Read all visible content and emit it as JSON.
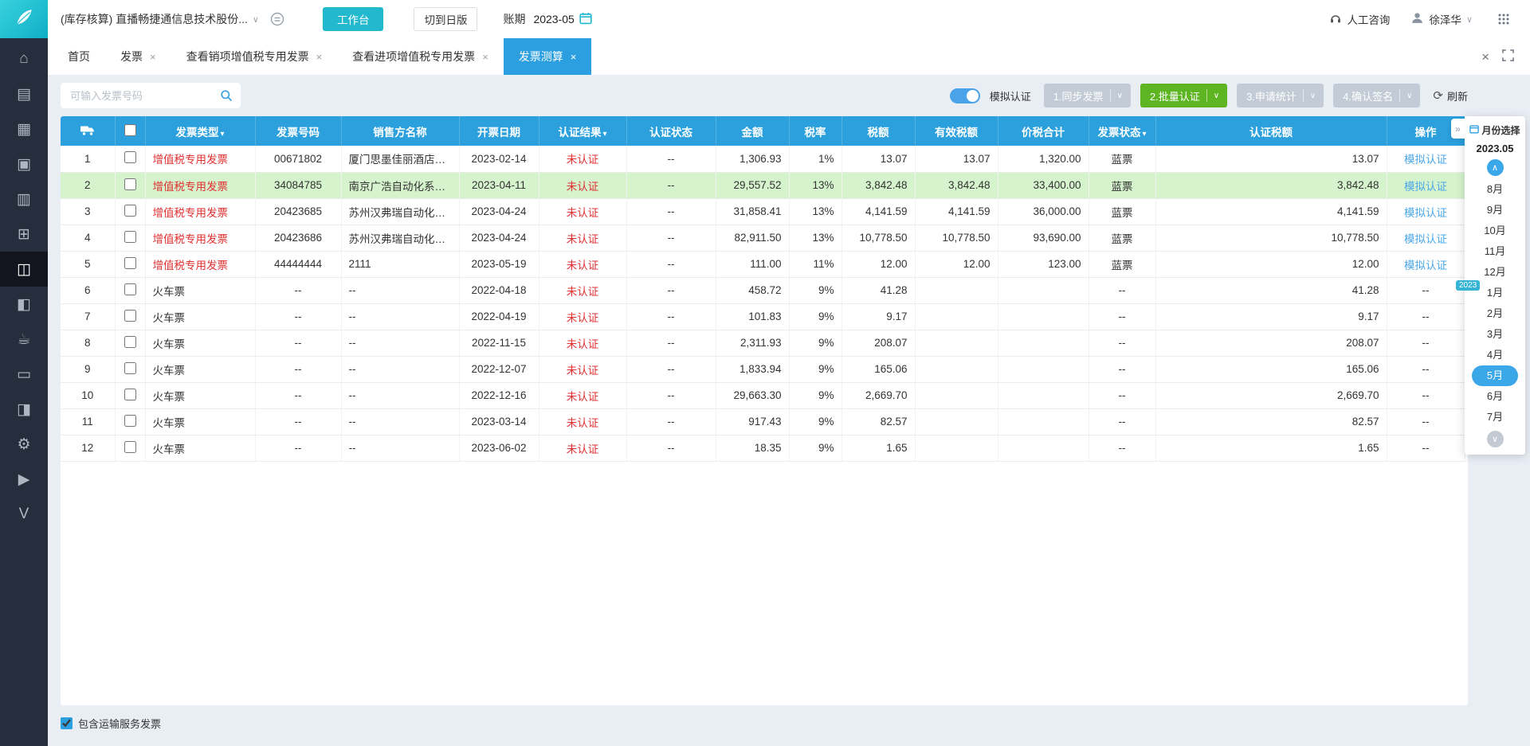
{
  "colors": {
    "accent_blue": "#2b9fe0",
    "teal": "#1fb9cc",
    "green": "#5db522",
    "red": "#e03131",
    "link_blue": "#4aa7e8",
    "selected_row_green": "#d5f3cc",
    "sidebar_bg": "#262d3c",
    "table_header_blue": "#2ba0dd"
  },
  "topbar": {
    "company": "(库存核算) 直播畅捷通信息技术股份...",
    "workbench_label": "工作台",
    "switch_label": "切到日版",
    "period_label": "账期",
    "period_value": "2023-05",
    "support_label": "人工咨询",
    "user_name": "徐泽华"
  },
  "sidebar": {
    "items": [
      {
        "id": "home",
        "icon": "home-icon",
        "glyph": "⌂",
        "active": false
      },
      {
        "id": "invoice",
        "icon": "invoice-icon",
        "glyph": "▤",
        "active": false
      },
      {
        "id": "report",
        "icon": "chart-icon",
        "glyph": "▦",
        "active": false
      },
      {
        "id": "safe",
        "icon": "safe-icon",
        "glyph": "▣",
        "active": false
      },
      {
        "id": "ledger",
        "icon": "ledger-icon",
        "glyph": "▥",
        "active": false
      },
      {
        "id": "modules",
        "icon": "modules-icon",
        "glyph": "⊞",
        "active": false
      },
      {
        "id": "goods",
        "icon": "goods-icon",
        "glyph": "◫",
        "active": true
      },
      {
        "id": "warehouse",
        "icon": "warehouse-icon",
        "glyph": "◧",
        "active": false
      },
      {
        "id": "service",
        "icon": "cup-icon",
        "glyph": "☕",
        "active": false
      },
      {
        "id": "assets",
        "icon": "card-icon",
        "glyph": "▭",
        "active": false
      },
      {
        "id": "drawer",
        "icon": "drawer-icon",
        "glyph": "◨",
        "active": false
      },
      {
        "id": "settings",
        "icon": "gear-icon",
        "glyph": "⚙",
        "active": false
      },
      {
        "id": "media",
        "icon": "play-icon",
        "glyph": "▶",
        "active": false
      },
      {
        "id": "brand",
        "icon": "brand-v-icon",
        "glyph": "V",
        "active": false
      }
    ]
  },
  "tabs": [
    {
      "label": "首页",
      "closable": false,
      "active": false
    },
    {
      "label": "发票",
      "closable": true,
      "active": false
    },
    {
      "label": "查看销项增值税专用发票",
      "closable": true,
      "active": false
    },
    {
      "label": "查看进项增值税专用发票",
      "closable": true,
      "active": false
    },
    {
      "label": "发票测算",
      "closable": true,
      "active": true
    }
  ],
  "toolbar": {
    "search_placeholder": "可输入发票号码",
    "toggle_label": "模拟认证",
    "buttons": [
      {
        "label": "1.同步发票",
        "variant": "gray"
      },
      {
        "label": "2.批量认证",
        "variant": "green"
      },
      {
        "label": "3.申请统计",
        "variant": "gray"
      },
      {
        "label": "4.确认签名",
        "variant": "gray"
      }
    ],
    "refresh_label": "刷新"
  },
  "table": {
    "columns": [
      {
        "label": "发票类型",
        "sortable": true
      },
      {
        "label": "发票号码",
        "sortable": false
      },
      {
        "label": "销售方名称",
        "sortable": false
      },
      {
        "label": "开票日期",
        "sortable": false
      },
      {
        "label": "认证结果",
        "sortable": true
      },
      {
        "label": "认证状态",
        "sortable": false
      },
      {
        "label": "金额",
        "sortable": false
      },
      {
        "label": "税率",
        "sortable": false
      },
      {
        "label": "税额",
        "sortable": false
      },
      {
        "label": "有效税额",
        "sortable": false
      },
      {
        "label": "价税合计",
        "sortable": false
      },
      {
        "label": "发票状态",
        "sortable": true
      },
      {
        "label": "认证税额",
        "sortable": false
      },
      {
        "label": "操作",
        "sortable": false
      }
    ],
    "rows": [
      {
        "num": "1",
        "checked": false,
        "selected": false,
        "type": "增值税专用发票",
        "type_red": true,
        "number": "00671802",
        "seller": "厦门思墨佳丽酒店管理有限...",
        "date": "2023-02-14",
        "result": "未认证",
        "status": "--",
        "amount": "1,306.93",
        "rate": "1%",
        "tax": "13.07",
        "valid_tax": "13.07",
        "total": "1,320.00",
        "inv_status": "蓝票",
        "cert_tax": "13.07",
        "action": "模拟认证"
      },
      {
        "num": "2",
        "checked": false,
        "selected": true,
        "type": "增值税专用发票",
        "type_red": true,
        "number": "34084785",
        "seller": "南京广浩自动化系统有限责...",
        "date": "2023-04-11",
        "result": "未认证",
        "status": "--",
        "amount": "29,557.52",
        "rate": "13%",
        "tax": "3,842.48",
        "valid_tax": "3,842.48",
        "total": "33,400.00",
        "inv_status": "蓝票",
        "cert_tax": "3,842.48",
        "action": "模拟认证"
      },
      {
        "num": "3",
        "checked": false,
        "selected": false,
        "type": "增值税专用发票",
        "type_red": true,
        "number": "20423685",
        "seller": "苏州汉弗瑞自动化科技有限...",
        "date": "2023-04-24",
        "result": "未认证",
        "status": "--",
        "amount": "31,858.41",
        "rate": "13%",
        "tax": "4,141.59",
        "valid_tax": "4,141.59",
        "total": "36,000.00",
        "inv_status": "蓝票",
        "cert_tax": "4,141.59",
        "action": "模拟认证"
      },
      {
        "num": "4",
        "checked": false,
        "selected": false,
        "type": "增值税专用发票",
        "type_red": true,
        "number": "20423686",
        "seller": "苏州汉弗瑞自动化科技有限...",
        "date": "2023-04-24",
        "result": "未认证",
        "status": "--",
        "amount": "82,911.50",
        "rate": "13%",
        "tax": "10,778.50",
        "valid_tax": "10,778.50",
        "total": "93,690.00",
        "inv_status": "蓝票",
        "cert_tax": "10,778.50",
        "action": "模拟认证"
      },
      {
        "num": "5",
        "checked": false,
        "selected": false,
        "type": "增值税专用发票",
        "type_red": true,
        "number": "44444444",
        "seller": "2111",
        "date": "2023-05-19",
        "result": "未认证",
        "status": "--",
        "amount": "111.00",
        "rate": "11%",
        "tax": "12.00",
        "valid_tax": "12.00",
        "total": "123.00",
        "inv_status": "蓝票",
        "cert_tax": "12.00",
        "action": "模拟认证"
      },
      {
        "num": "6",
        "checked": false,
        "selected": false,
        "type": "火车票",
        "type_red": false,
        "number": "--",
        "seller": "--",
        "date": "2022-04-18",
        "result": "未认证",
        "status": "--",
        "amount": "458.72",
        "rate": "9%",
        "tax": "41.28",
        "valid_tax": "",
        "total": "",
        "inv_status": "--",
        "cert_tax": "41.28",
        "action": "--"
      },
      {
        "num": "7",
        "checked": false,
        "selected": false,
        "type": "火车票",
        "type_red": false,
        "number": "--",
        "seller": "--",
        "date": "2022-04-19",
        "result": "未认证",
        "status": "--",
        "amount": "101.83",
        "rate": "9%",
        "tax": "9.17",
        "valid_tax": "",
        "total": "",
        "inv_status": "--",
        "cert_tax": "9.17",
        "action": "--"
      },
      {
        "num": "8",
        "checked": false,
        "selected": false,
        "type": "火车票",
        "type_red": false,
        "number": "--",
        "seller": "--",
        "date": "2022-11-15",
        "result": "未认证",
        "status": "--",
        "amount": "2,311.93",
        "rate": "9%",
        "tax": "208.07",
        "valid_tax": "",
        "total": "",
        "inv_status": "--",
        "cert_tax": "208.07",
        "action": "--"
      },
      {
        "num": "9",
        "checked": false,
        "selected": false,
        "type": "火车票",
        "type_red": false,
        "number": "--",
        "seller": "--",
        "date": "2022-12-07",
        "result": "未认证",
        "status": "--",
        "amount": "1,833.94",
        "rate": "9%",
        "tax": "165.06",
        "valid_tax": "",
        "total": "",
        "inv_status": "--",
        "cert_tax": "165.06",
        "action": "--"
      },
      {
        "num": "10",
        "checked": false,
        "selected": false,
        "type": "火车票",
        "type_red": false,
        "number": "--",
        "seller": "--",
        "date": "2022-12-16",
        "result": "未认证",
        "status": "--",
        "amount": "29,663.30",
        "rate": "9%",
        "tax": "2,669.70",
        "valid_tax": "",
        "total": "",
        "inv_status": "--",
        "cert_tax": "2,669.70",
        "action": "--"
      },
      {
        "num": "11",
        "checked": false,
        "selected": false,
        "type": "火车票",
        "type_red": false,
        "number": "--",
        "seller": "--",
        "date": "2023-03-14",
        "result": "未认证",
        "status": "--",
        "amount": "917.43",
        "rate": "9%",
        "tax": "82.57",
        "valid_tax": "",
        "total": "",
        "inv_status": "--",
        "cert_tax": "82.57",
        "action": "--"
      },
      {
        "num": "12",
        "checked": false,
        "selected": false,
        "type": "火车票",
        "type_red": false,
        "number": "--",
        "seller": "--",
        "date": "2023-06-02",
        "result": "未认证",
        "status": "--",
        "amount": "18.35",
        "rate": "9%",
        "tax": "1.65",
        "valid_tax": "",
        "total": "",
        "inv_status": "--",
        "cert_tax": "1.65",
        "action": "--"
      }
    ]
  },
  "month_panel": {
    "title": "月份选择",
    "current": "2023.05",
    "year_badge": "2023",
    "months": [
      "8月",
      "9月",
      "10月",
      "11月",
      "12月",
      "1月",
      "2月",
      "3月",
      "4月",
      "5月",
      "6月",
      "7月"
    ],
    "selected": "5月"
  },
  "footer": {
    "checkbox_label": "包含运输服务发票",
    "checked": true
  }
}
